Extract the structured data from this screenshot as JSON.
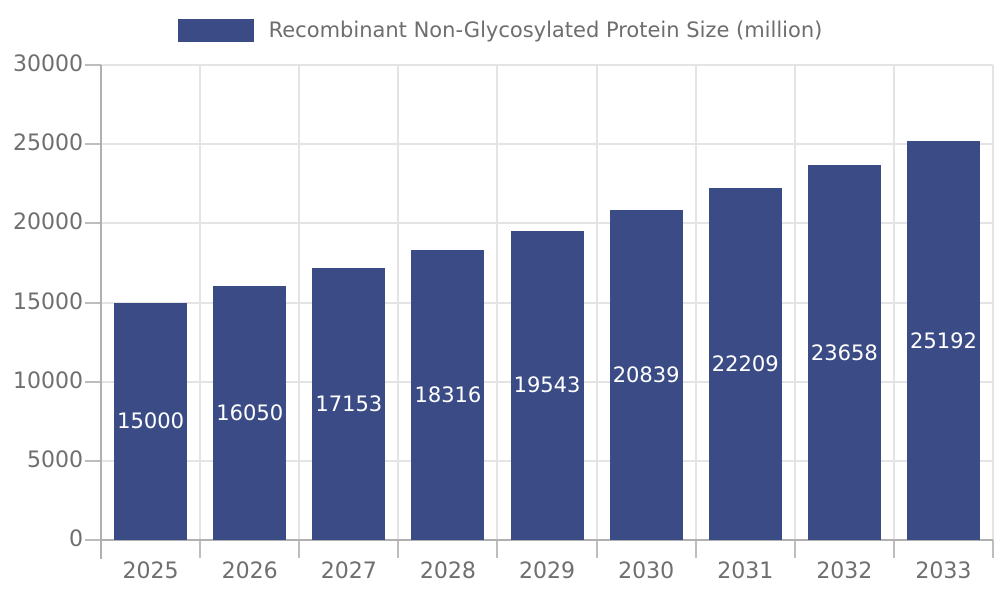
{
  "legend": {
    "label": "Recombinant Non-Glycosylated Protein Size (million)"
  },
  "chart_data": {
    "type": "bar",
    "title": "Recombinant Non-Glycosylated Protein Size (million)",
    "categories": [
      "2025",
      "2026",
      "2027",
      "2028",
      "2029",
      "2030",
      "2031",
      "2032",
      "2033"
    ],
    "values": [
      15000,
      16050,
      17153,
      18316,
      19543,
      20839,
      22209,
      23658,
      25192
    ],
    "value_labels": [
      "15000",
      "16050",
      "17153",
      "18316",
      "19543",
      "20839",
      "22209",
      "23658",
      "25192"
    ],
    "xlabel": "",
    "ylabel": "",
    "ylim": [
      0,
      30000
    ],
    "ytick_step": 5000,
    "ytick_labels": [
      "0",
      "5000",
      "10000",
      "15000",
      "20000",
      "25000",
      "30000"
    ],
    "grid": true,
    "legend_position": "top-center",
    "colors": {
      "bar": "#3A4B85",
      "bar_value_text": "#ffffff",
      "axis_text": "#6f6f6f",
      "legend_text": "#6e6e6e",
      "gridline": "#e4e4e4",
      "axis_line": "#b0b0b0",
      "tick": "#bdbdbd",
      "background": "#ffffff"
    }
  }
}
